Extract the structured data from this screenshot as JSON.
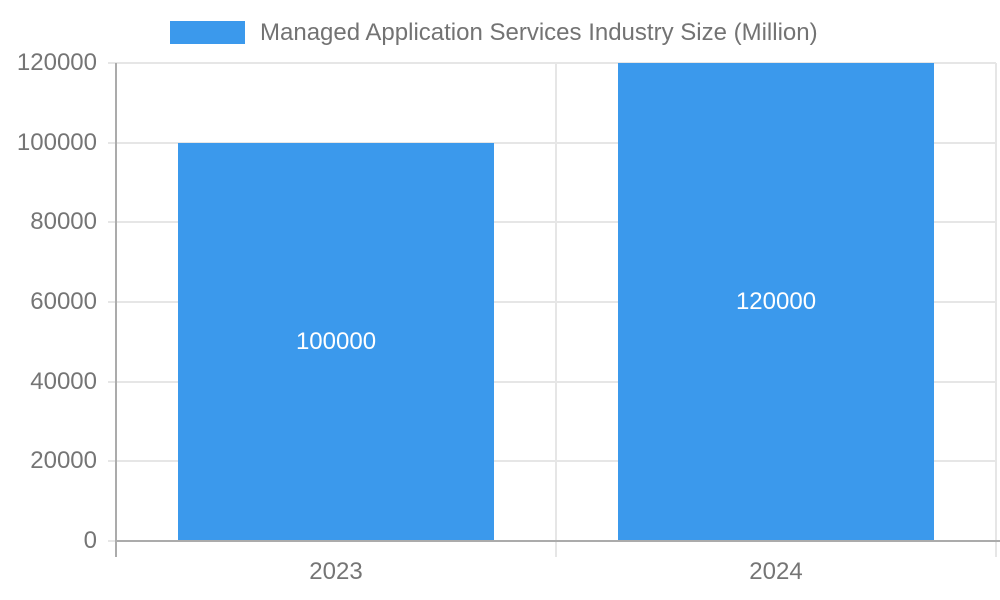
{
  "chart_data": {
    "type": "bar",
    "title": "Managed Application Services Industry Size (Million)",
    "categories": [
      "2023",
      "2024"
    ],
    "values": [
      100000,
      120000
    ],
    "bar_labels": [
      "100000",
      "120000"
    ],
    "series": [
      {
        "name": "Managed Application Services Industry Size (Million)",
        "values": [
          100000,
          120000
        ]
      }
    ],
    "xlabel": "",
    "ylabel": "",
    "ylim": [
      0,
      120000
    ],
    "ytick_interval": 20000,
    "yticks": [
      0,
      20000,
      40000,
      60000,
      80000,
      100000,
      120000
    ],
    "ytick_labels": [
      "0",
      "20000",
      "40000",
      "60000",
      "80000",
      "100000",
      "120000"
    ],
    "grid": true,
    "legend_position": "top-left"
  },
  "colors": {
    "bar": "#3B99EC",
    "axis_line": "#ABABAB",
    "gridline": "#E6E6E6",
    "tick_text": "#757575",
    "title_text": "#737373",
    "bar_label_text": "#FFFFFF",
    "background": "#FFFFFF"
  }
}
